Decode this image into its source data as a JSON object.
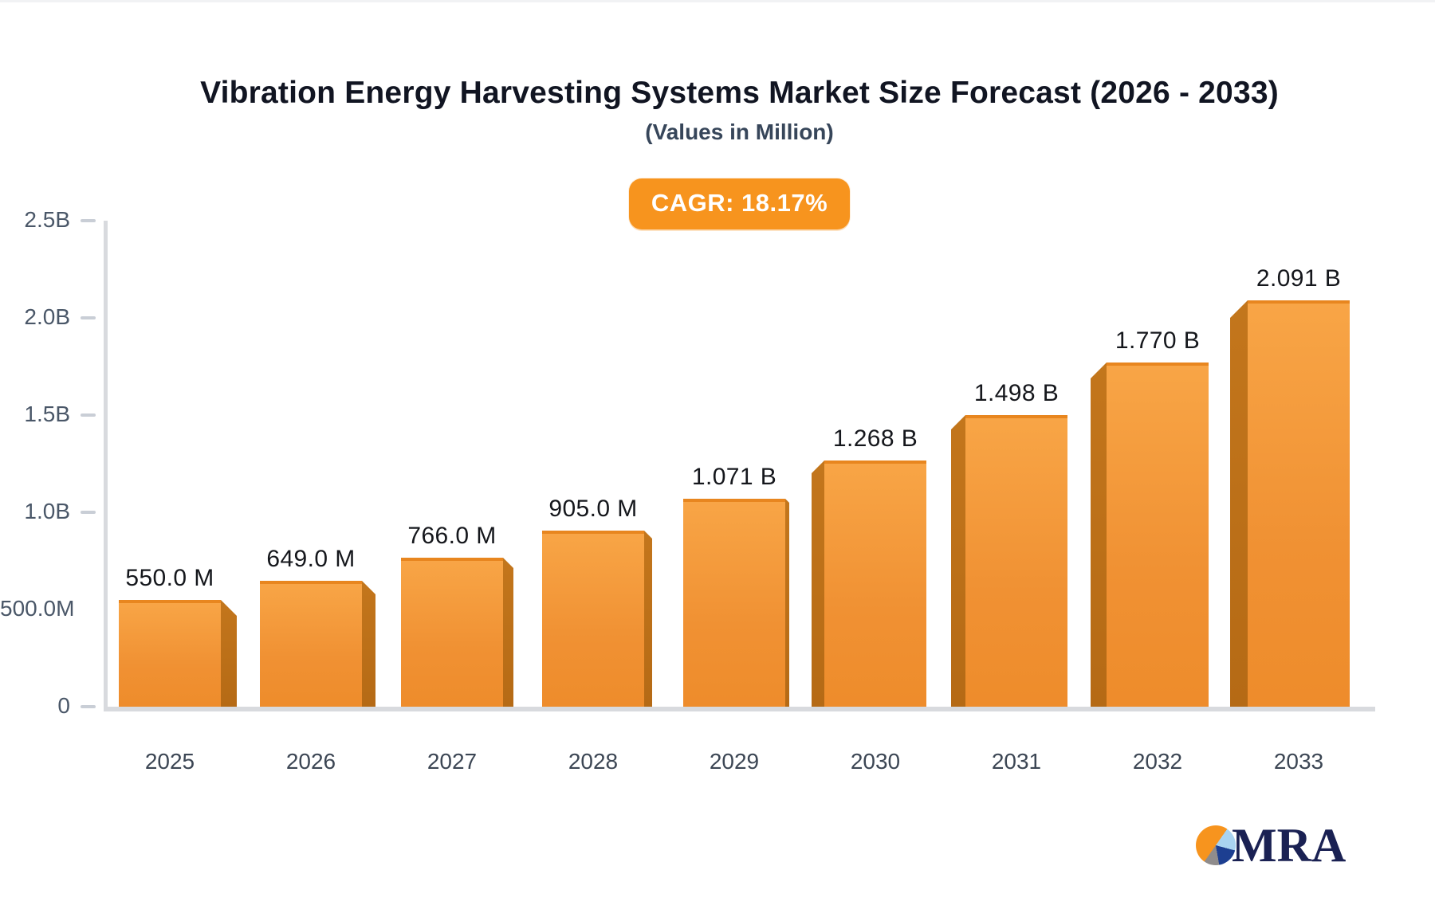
{
  "title": "Vibration Energy Harvesting Systems Market Size Forecast (2026 - 2033)",
  "subtitle": "(Values in Million)",
  "badge": {
    "label": "CAGR: 18.17%"
  },
  "logo": {
    "text": "MRA"
  },
  "colors": {
    "bar_front": "#f09133",
    "bar_side": "#b96c15",
    "badge_orange": "#f7941e",
    "axis_gray": "#d8dade",
    "title_text": "#111522",
    "logo_navy": "#1a2153"
  },
  "chart_data": {
    "type": "bar",
    "title": "Vibration Energy Harvesting Systems Market Size Forecast (2026 - 2033)",
    "subtitle": "(Values in Million)",
    "xlabel": "",
    "ylabel": "",
    "categories": [
      "2025",
      "2026",
      "2027",
      "2028",
      "2029",
      "2030",
      "2031",
      "2032",
      "2033"
    ],
    "values_millions": [
      550,
      649,
      766,
      905,
      1071,
      1268,
      1498,
      1770,
      2091
    ],
    "bar_labels": [
      "550.0 M",
      "649.0 M",
      "766.0 M",
      "905.0 M",
      "1.071 B",
      "1.268 B",
      "1.498 B",
      "1.770 B",
      "2.091 B"
    ],
    "ylim_millions": [
      0,
      2500
    ],
    "grid": false,
    "legend": "none",
    "annotation": "CAGR: 18.17%",
    "y_ticks": [
      {
        "label": "2.5B",
        "value": 2500,
        "dash": true
      },
      {
        "label": "2.0B",
        "value": 2000,
        "dash": true
      },
      {
        "label": "1.5B",
        "value": 1500,
        "dash": true
      },
      {
        "label": "1.0B",
        "value": 1000,
        "dash": true
      },
      {
        "label": "500.0M",
        "value": 500,
        "dash": false
      },
      {
        "label": "0",
        "value": 0,
        "dash": true
      }
    ]
  }
}
